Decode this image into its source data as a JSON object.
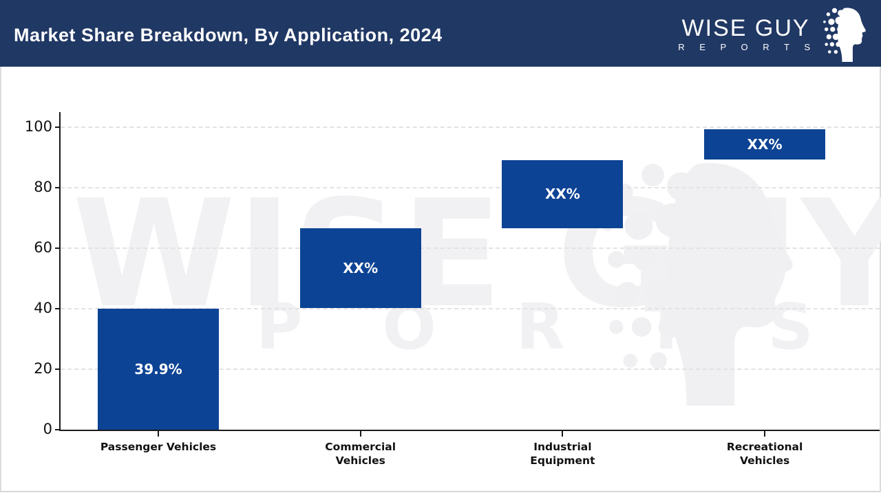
{
  "header": {
    "title": "Market Share Breakdown, By Application, 2024",
    "logo": {
      "line1": "WISE GUY",
      "line2": "R E P O R T S"
    }
  },
  "watermark": {
    "line1": "WISE GUY",
    "line2": "P O R T S"
  },
  "chart_data": {
    "type": "bar",
    "subtype": "waterfall",
    "title": "Market Share Breakdown, By Application, 2024",
    "categories": [
      [
        "Passenger Vehicles"
      ],
      [
        "Commercial",
        "Vehicles"
      ],
      [
        "Industrial",
        "Equipment"
      ],
      [
        "Recreational",
        "Vehicles"
      ]
    ],
    "segments": [
      {
        "from": 0,
        "to": 39.9,
        "label": "39.9%"
      },
      {
        "from": 40.2,
        "to": 66.6,
        "label": "XX%"
      },
      {
        "from": 66.6,
        "to": 89.1,
        "label": "XX%"
      },
      {
        "from": 89.3,
        "to": 99.3,
        "label": "XX%"
      }
    ],
    "ylim": [
      0,
      100
    ],
    "yticks": [
      0,
      20,
      40,
      60,
      80,
      100
    ],
    "xlabel": "",
    "ylabel": "",
    "grid": "horizontal-dashed",
    "legend": "none",
    "bar_color": "#0d4394",
    "bar_label_color": "#ffffff"
  }
}
